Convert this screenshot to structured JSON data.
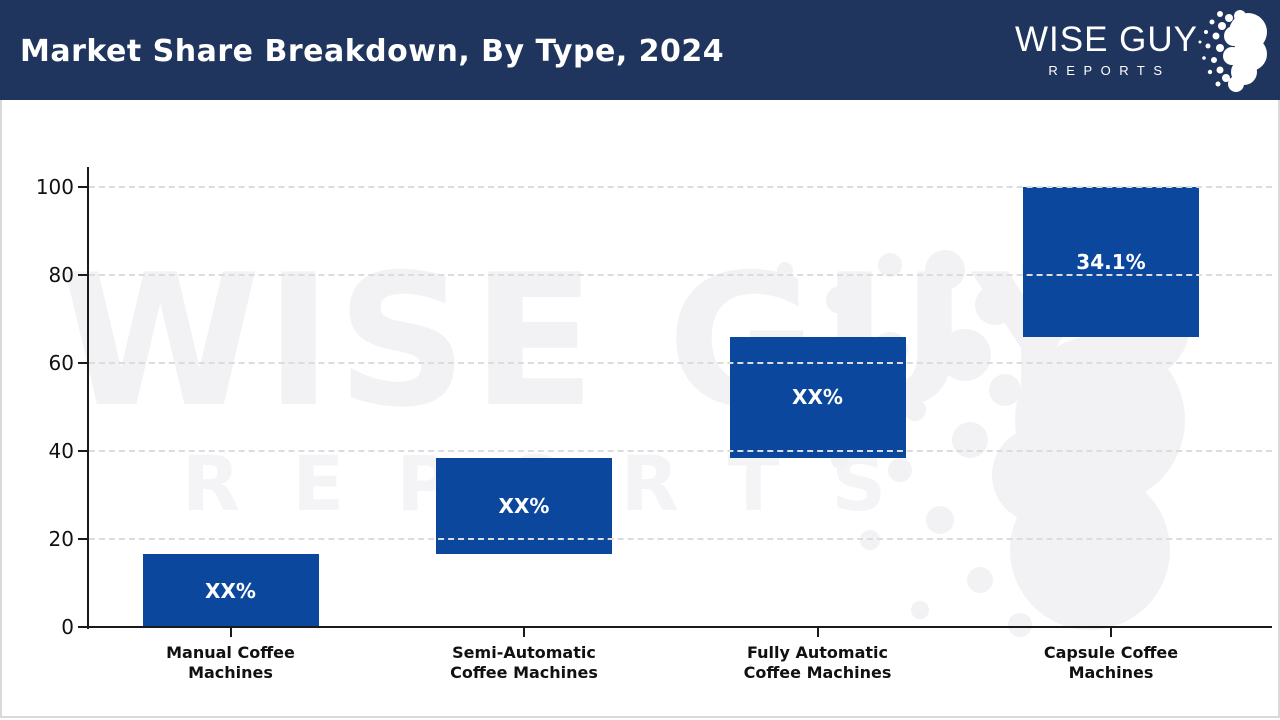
{
  "header": {
    "title": "Market Share Breakdown, By Type, 2024",
    "bg_color": "#1F355E",
    "logo": {
      "wordmark": "WISE GUY",
      "subtitle": "REPORTS"
    }
  },
  "watermark": {
    "line1": "WISE GUY",
    "line2": "REPORTS"
  },
  "chart_data": {
    "type": "bar",
    "subtype": "waterfall",
    "title": "Market Share Breakdown, By Type, 2024",
    "categories": [
      "Manual Coffee Machines",
      "Semi-Automatic Coffee Machines",
      "Fully Automatic Coffee Machines",
      "Capsule Coffee Machines"
    ],
    "bars": [
      {
        "category_lines": [
          "Manual Coffee",
          "Machines"
        ],
        "label": "XX%",
        "start": 0,
        "end": 16.5
      },
      {
        "category_lines": [
          "Semi-Automatic",
          "Coffee Machines"
        ],
        "label": "XX%",
        "start": 16.5,
        "end": 38.5
      },
      {
        "category_lines": [
          "Fully Automatic",
          "Coffee Machines"
        ],
        "label": "XX%",
        "start": 38.5,
        "end": 65.9
      },
      {
        "category_lines": [
          "Capsule Coffee",
          "Machines"
        ],
        "label": "34.1%",
        "start": 65.9,
        "end": 100
      }
    ],
    "yticks": [
      0,
      20,
      40,
      60,
      80,
      100
    ],
    "ylim": [
      0,
      104.5
    ],
    "xlabel": "",
    "ylabel": "",
    "legend": "none",
    "grid": "horizontal-dashed",
    "bar_color": "#0B479C",
    "grid_color": "#DCDCDC",
    "axis_color": "#1A1A1A",
    "value_label_color": "#FFFFFF"
  }
}
